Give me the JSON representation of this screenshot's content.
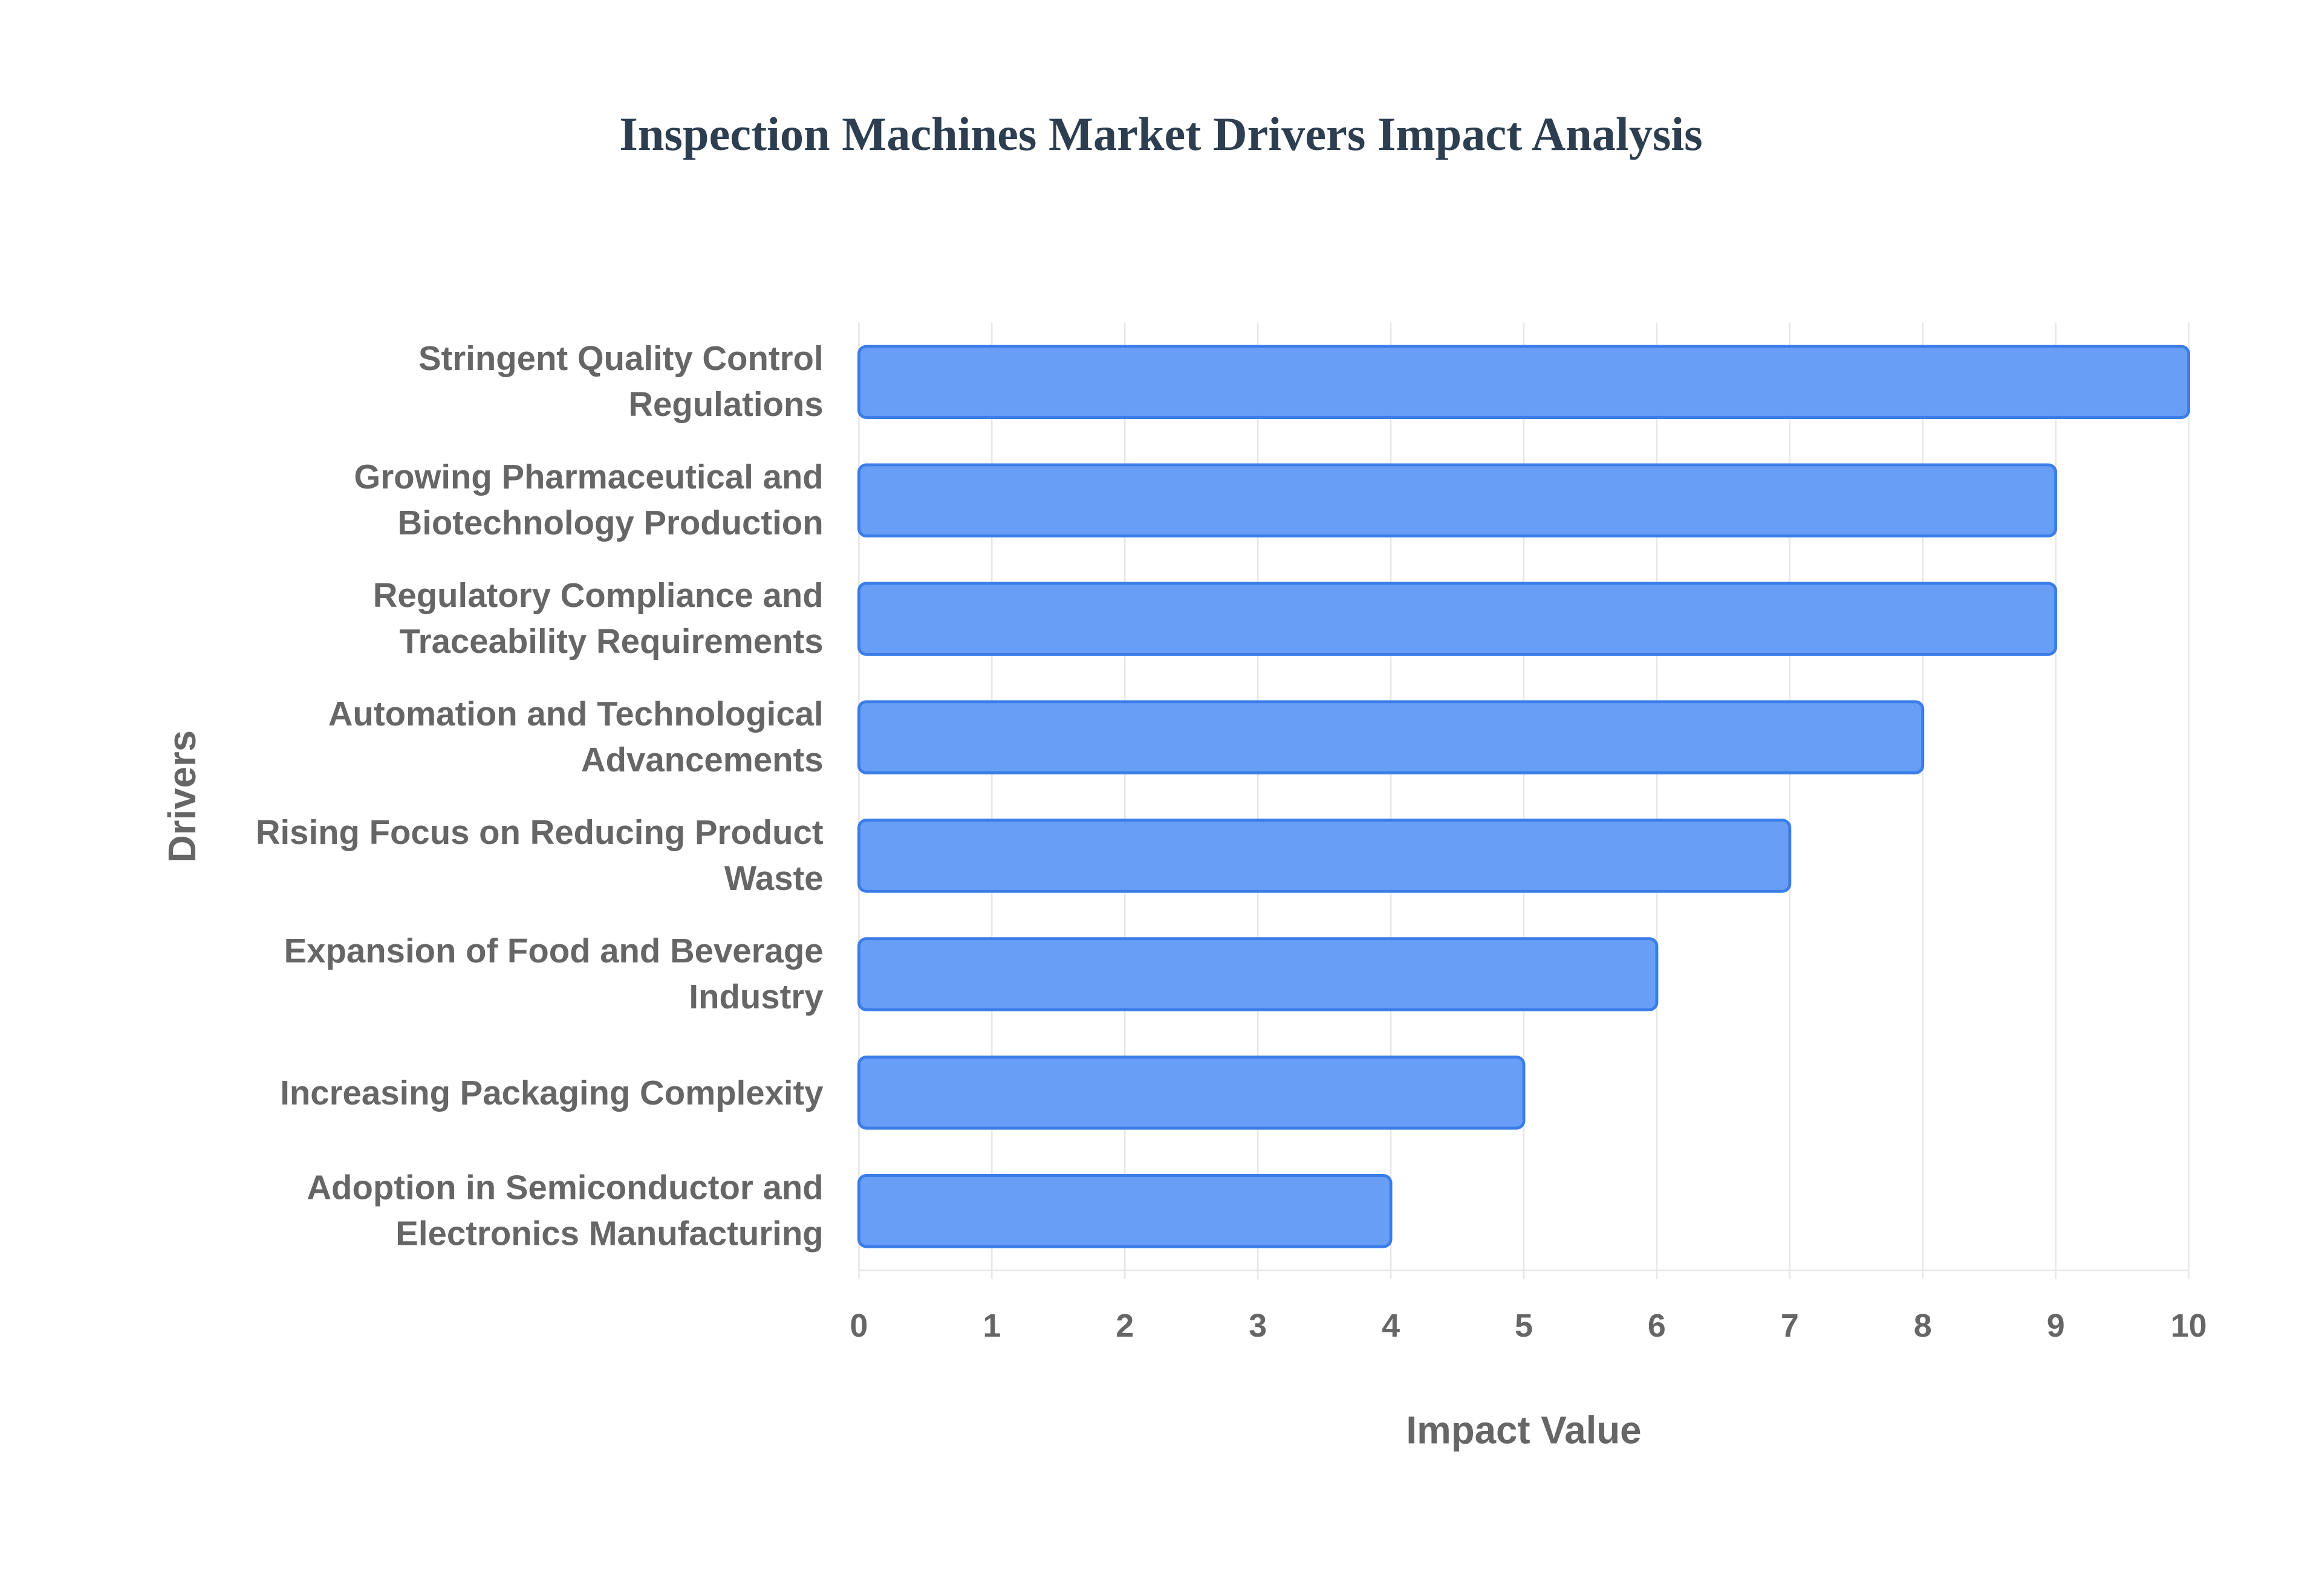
{
  "chart_data": {
    "type": "bar",
    "orientation": "horizontal",
    "title": "Inspection Machines Market Drivers Impact Analysis",
    "x_label": "Impact Value",
    "y_label": "Drivers",
    "categories": [
      "Stringent Quality Control Regulations",
      "Growing Pharmaceutical and Biotechnology Production",
      "Regulatory Compliance and Traceability Requirements",
      "Automation and Technological Advancements",
      "Rising Focus on Reducing Product Waste",
      "Expansion of Food and Beverage Industry",
      "Increasing Packaging Complexity",
      "Adoption in Semiconductor and Electronics Manufacturing"
    ],
    "values": [
      10,
      9,
      9,
      8,
      7,
      6,
      5,
      4
    ],
    "color": "#6199f5",
    "xlim": [
      0,
      10
    ],
    "xticks": [
      0,
      1,
      2,
      3,
      4,
      5,
      6,
      7,
      8,
      9,
      10
    ],
    "grid": true
  }
}
